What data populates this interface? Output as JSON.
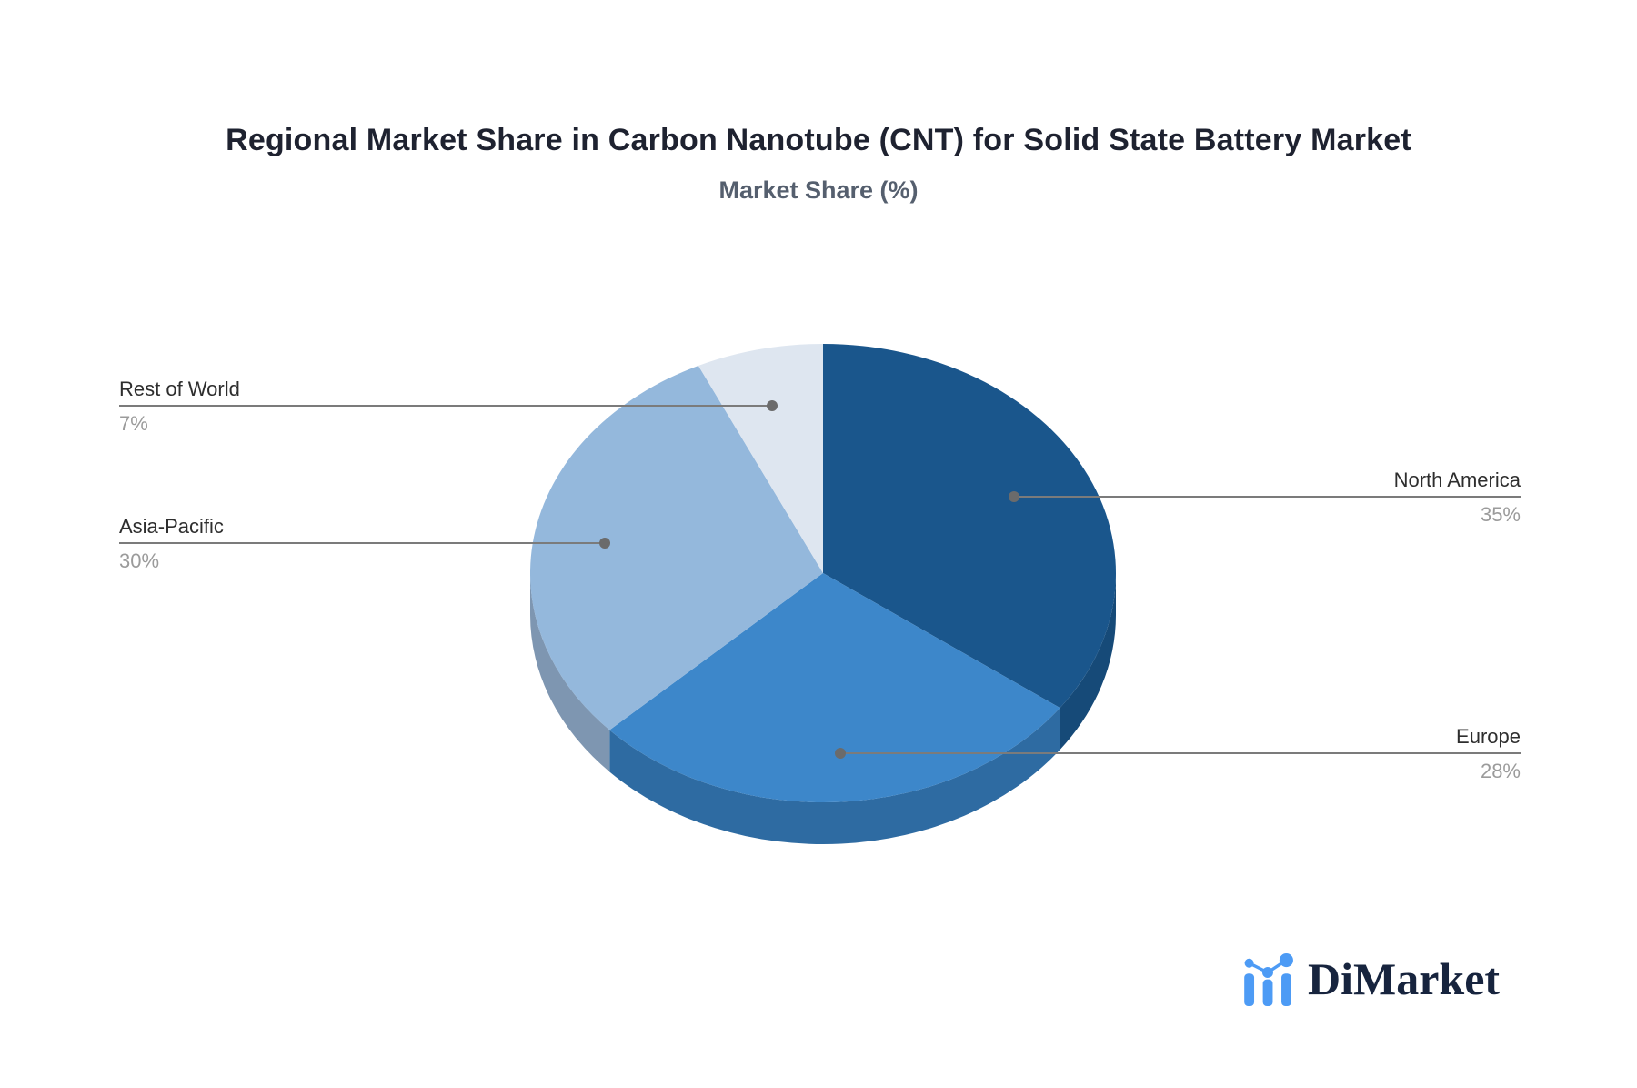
{
  "title": "Regional Market Share in Carbon Nanotube (CNT) for Solid State Battery Market",
  "subtitle": "Market Share (%)",
  "chart_data": {
    "type": "pie",
    "style": "3d",
    "title": "Regional Market Share in Carbon Nanotube (CNT) for Solid State Battery Market",
    "subtitle": "Market Share (%)",
    "unit": "%",
    "start_angle_deg": 0,
    "direction": "clockwise",
    "labels": [
      "North America",
      "Europe",
      "Asia-Pacific",
      "Rest of World"
    ],
    "values": [
      35,
      28,
      30,
      7
    ],
    "display_values": [
      "35%",
      "28%",
      "30%",
      "7%"
    ],
    "colors": [
      "#1a568c",
      "#3d87ca",
      "#94b8dc",
      "#dee6f0"
    ],
    "side_colors": [
      "#164a78",
      "#2e6ba2",
      "#7e96b1",
      "#b9c4d4"
    ],
    "legend": "none",
    "callout_line_color": "#7b7b7b",
    "label_color": "#2e2e2e",
    "value_color": "#9b9b9b"
  },
  "logo": {
    "text": "DiMarket",
    "icon": "bar-chart-logo-icon",
    "icon_color": "#4d9bf5",
    "text_color": "#17243e"
  }
}
